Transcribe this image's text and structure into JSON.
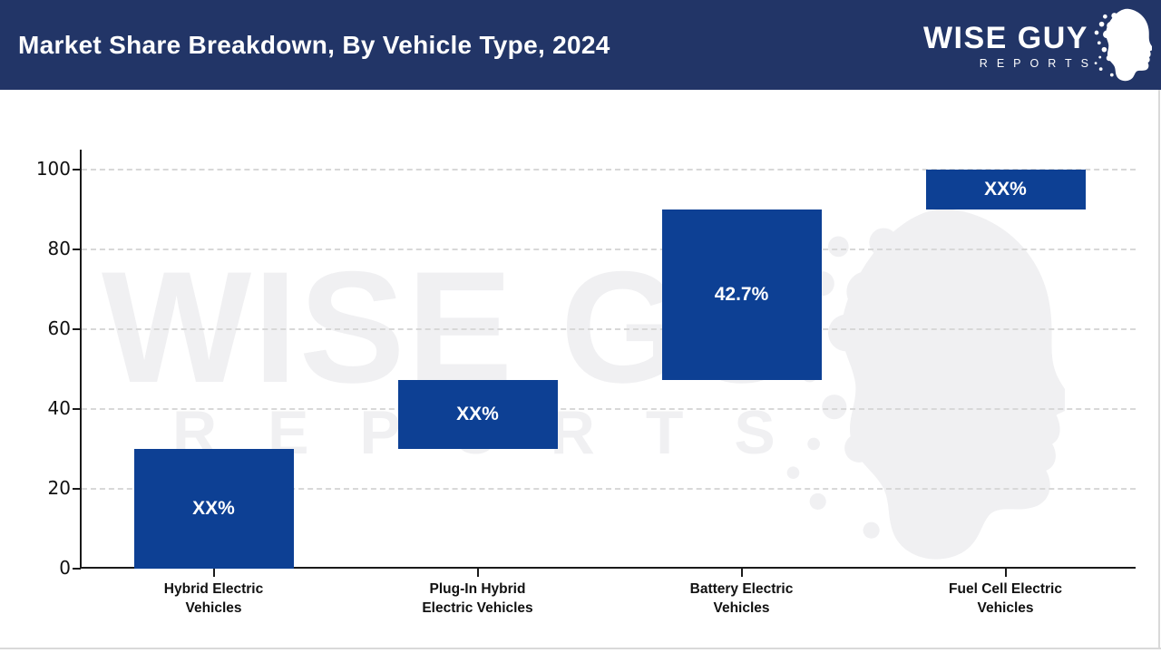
{
  "header": {
    "title": "Market Share Breakdown, By Vehicle Type, 2024",
    "bg_color": "#223567",
    "logo": {
      "line1": "WISE GUY",
      "line2": "REPORTS"
    }
  },
  "watermark": {
    "line1": "WISE GU",
    "line2": "REPORTS"
  },
  "chart_data": {
    "type": "bar",
    "subtype": "waterfall",
    "title": "Market Share Breakdown, By Vehicle Type, 2024",
    "xlabel": "",
    "ylabel": "",
    "ylim": [
      0,
      100
    ],
    "yticks": [
      0,
      20,
      40,
      60,
      80,
      100
    ],
    "grid": "horizontal-dashed",
    "legend": "none",
    "bar_color": "#0d4094",
    "categories": [
      "Hybrid Electric Vehicles",
      "Plug-In Hybrid Electric Vehicles",
      "Battery Electric Vehicles",
      "Fuel Cell Electric Vehicles"
    ],
    "category_lines": [
      [
        "Hybrid Electric",
        "Vehicles"
      ],
      [
        "Plug-In Hybrid",
        "Electric Vehicles"
      ],
      [
        "Battery Electric",
        "Vehicles"
      ],
      [
        "Fuel Cell Electric",
        "Vehicles"
      ]
    ],
    "segments": [
      {
        "category": "Hybrid Electric Vehicles",
        "start": 0,
        "end": 30,
        "span": 30,
        "label": "XX%"
      },
      {
        "category": "Plug-In Hybrid Electric Vehicles",
        "start": 30,
        "end": 47.3,
        "span": 17.3,
        "label": "XX%"
      },
      {
        "category": "Battery Electric Vehicles",
        "start": 47.3,
        "end": 90,
        "span": 42.7,
        "label": "42.7%"
      },
      {
        "category": "Fuel Cell Electric Vehicles",
        "start": 90,
        "end": 100,
        "span": 10,
        "label": "XX%"
      }
    ]
  }
}
